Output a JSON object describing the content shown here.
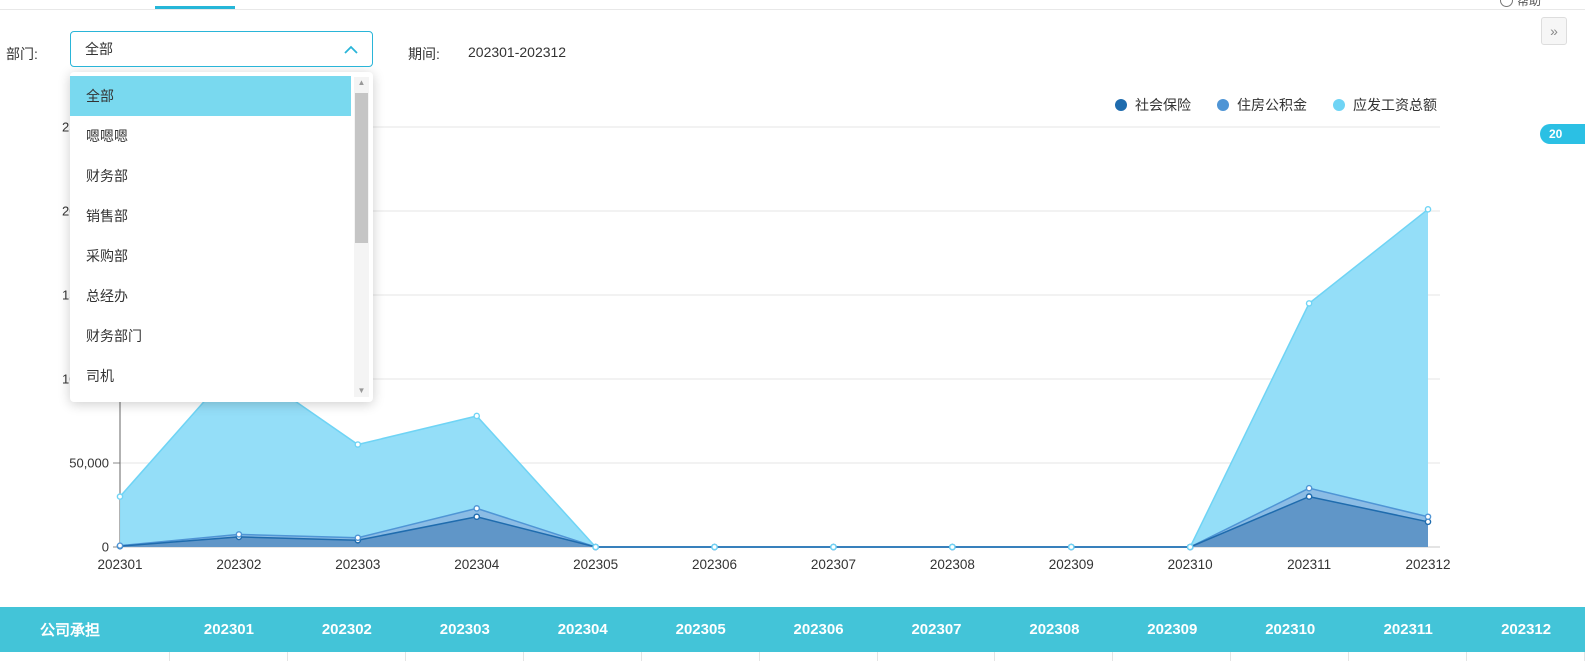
{
  "topbar": {
    "help_label": "帮助",
    "expand_icon": "»",
    "active_tab_color": "#26b6d8"
  },
  "filters": {
    "department_label": "部门:",
    "department_value": "全部",
    "period_label": "期间:",
    "period_value": "202301-202312"
  },
  "dropdown": {
    "items": [
      "全部",
      "嗯嗯嗯",
      "财务部",
      "销售部",
      "采购部",
      "总经办",
      "财务部门",
      "司机"
    ],
    "selected_index": 0,
    "scroll_up_icon": "▲",
    "scroll_down_icon": "▼"
  },
  "side_badge": {
    "label": "20",
    "color": "#2bc0e4"
  },
  "chart_data": {
    "type": "area",
    "title": "",
    "categories": [
      "202301",
      "202302",
      "202303",
      "202304",
      "202305",
      "202306",
      "202307",
      "202308",
      "202309",
      "202310",
      "202311",
      "202312"
    ],
    "series": [
      {
        "name": "社会保险",
        "color": "#1f6cae",
        "fill": "#5e93c6",
        "values": [
          500,
          6000,
          4000,
          18000,
          0,
          0,
          0,
          0,
          0,
          0,
          30000,
          15000
        ]
      },
      {
        "name": "住房公积金",
        "color": "#4f95d5",
        "fill": "#8ab9e4",
        "values": [
          800,
          7500,
          5500,
          23000,
          0,
          0,
          0,
          0,
          0,
          0,
          35000,
          18000
        ]
      },
      {
        "name": "应发工资总额",
        "color": "#6fd4f5",
        "fill": "#8edcf8",
        "values": [
          30000,
          110000,
          61000,
          78000,
          0,
          0,
          0,
          0,
          0,
          0,
          145000,
          201000
        ]
      }
    ],
    "ylim": [
      0,
      250000
    ],
    "ytick_step": 50000,
    "grid": true,
    "legend_position": "top-right",
    "xlabel": "",
    "ylabel": ""
  },
  "table": {
    "header_bg": "#43c4d8",
    "header": [
      "公司承担",
      "202301",
      "202302",
      "202303",
      "202304",
      "202305",
      "202306",
      "202307",
      "202308",
      "202309",
      "202310",
      "202311",
      "202312"
    ]
  }
}
